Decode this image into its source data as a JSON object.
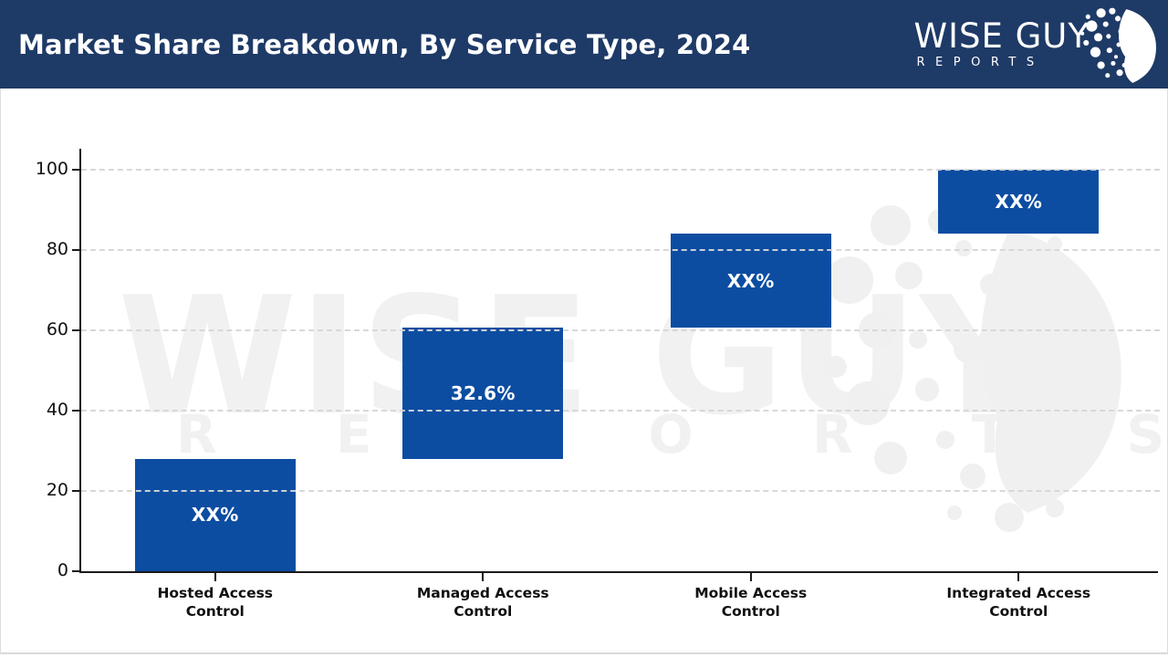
{
  "header": {
    "title": "Market Share Breakdown, By Service Type, 2024",
    "logo": {
      "name": "WISE GUY",
      "sub": "REPORTS"
    }
  },
  "watermark": {
    "name": "WISE GUY",
    "sub": "R E P O R T S"
  },
  "chart_data": {
    "type": "bar",
    "subtype": "waterfall",
    "title": "Market Share Breakdown, By Service Type, 2024",
    "categories": [
      "Hosted Access\nControl",
      "Managed Access\nControl",
      "Mobile Access\nControl",
      "Integrated Access\nControl"
    ],
    "segments": [
      {
        "category": "Hosted Access Control",
        "start": 0,
        "end": 28,
        "label": "XX%"
      },
      {
        "category": "Managed Access Control",
        "start": 28,
        "end": 60.6,
        "label": "32.6%",
        "value": 32.6
      },
      {
        "category": "Mobile Access Control",
        "start": 60.6,
        "end": 84,
        "label": "XX%"
      },
      {
        "category": "Integrated Access Control",
        "start": 84,
        "end": 100,
        "label": "XX%"
      }
    ],
    "yticks": [
      0,
      20,
      40,
      60,
      80,
      100
    ],
    "ylim": [
      0,
      105
    ],
    "grid": {
      "show": true,
      "style": "dashed",
      "color": "#d6d6d6",
      "on_top": true
    },
    "bar_color": "#0c4da2",
    "bar_label_color": "#ffffff",
    "axis_color": "#1a1a1a",
    "legend": "none"
  },
  "colors": {
    "header_bg": "#1e3a67",
    "accent_blue": "#0c4da2",
    "watermark": "#f1f1f1"
  }
}
